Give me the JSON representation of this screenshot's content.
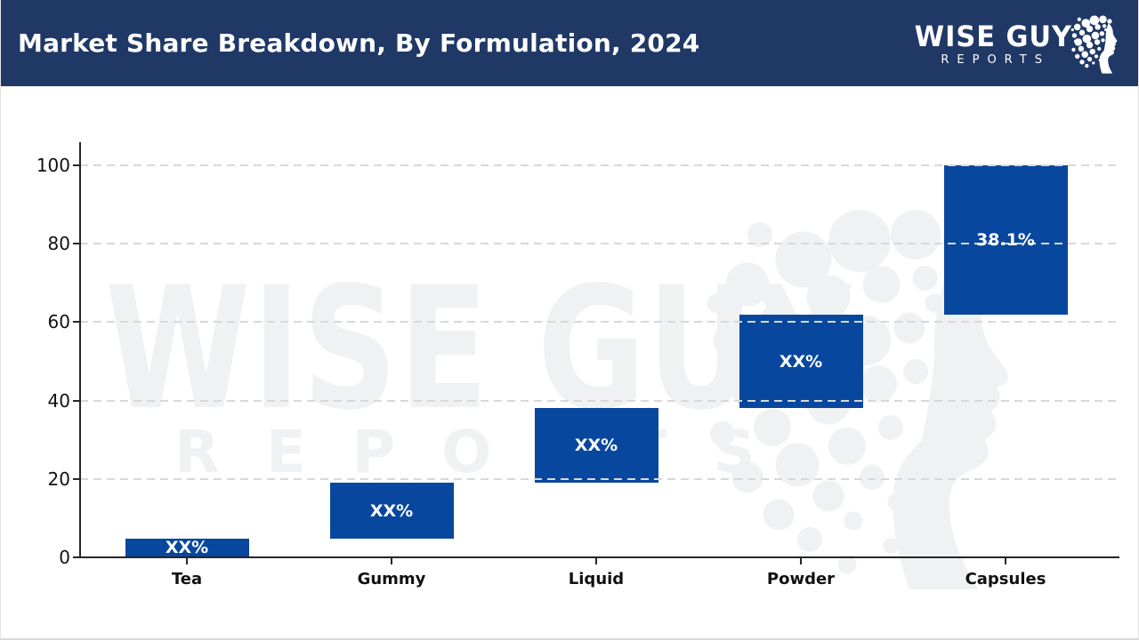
{
  "header": {
    "title": "Market Share Breakdown, By Formulation, 2024"
  },
  "logo": {
    "line1": "WISE GUY",
    "line2": "REPORTS"
  },
  "watermark": {
    "line1": "WISE GUY",
    "line2": "REPORTS"
  },
  "colors": {
    "header_bg": "#1f3866",
    "bar_blue": "#08479e",
    "watermark_gray": "#f0f1f3",
    "grid_gray": "#d8d8d8",
    "axis_black": "#262626"
  },
  "chart_data": {
    "type": "bar",
    "variant": "waterfall",
    "title": "Market Share Breakdown, By Formulation, 2024",
    "categories": [
      "Tea",
      "Gummy",
      "Liquid",
      "Powder",
      "Capsules"
    ],
    "segments": [
      {
        "category": "Tea",
        "start": 0,
        "end": 4.8,
        "value_label": "XX%"
      },
      {
        "category": "Gummy",
        "start": 4.8,
        "end": 19.0,
        "value_label": "XX%"
      },
      {
        "category": "Liquid",
        "start": 19.0,
        "end": 38.1,
        "value_label": "XX%"
      },
      {
        "category": "Powder",
        "start": 38.1,
        "end": 61.9,
        "value_label": "XX%"
      },
      {
        "category": "Capsules",
        "start": 61.9,
        "end": 100,
        "value_label": "38.1%"
      }
    ],
    "yticks": [
      0,
      20,
      40,
      60,
      80,
      100
    ],
    "ylim": [
      0,
      105
    ],
    "xlabel": "",
    "ylabel": "",
    "grid": {
      "axis": "y",
      "style": "dashed",
      "drawn_over_bars": true
    },
    "bar_label_color": "#ffffff",
    "legend": "none"
  }
}
